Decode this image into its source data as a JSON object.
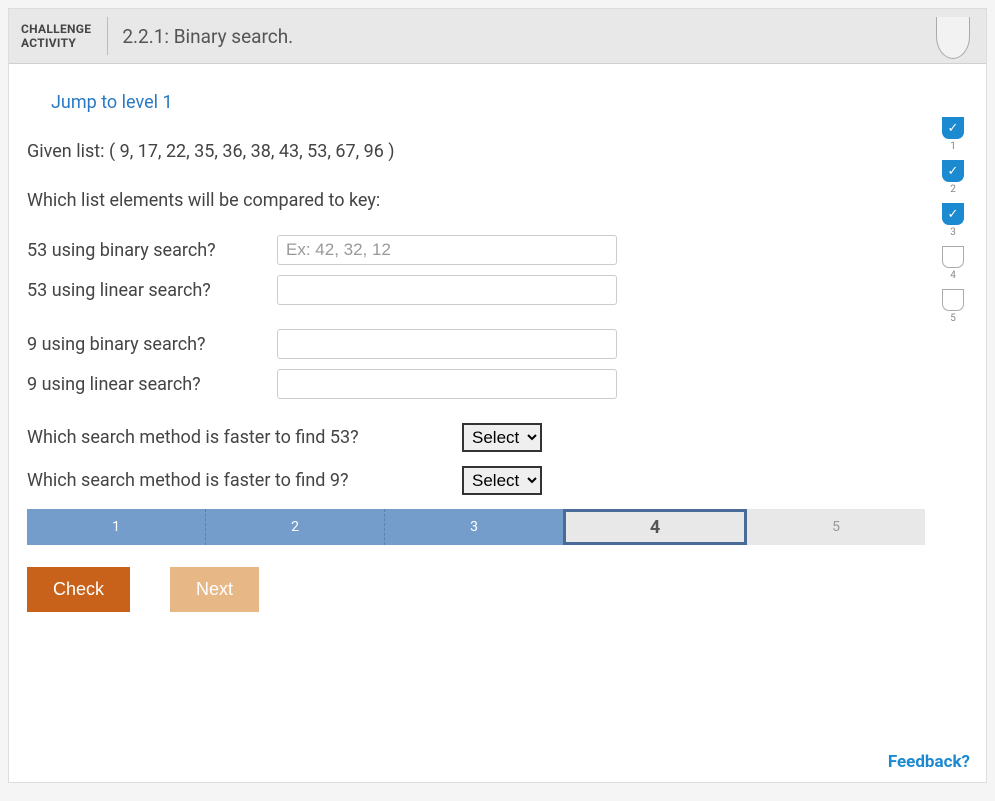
{
  "header": {
    "challenge_label_line1": "CHALLENGE",
    "challenge_label_line2": "ACTIVITY",
    "title": "2.2.1: Binary search."
  },
  "jump_link": "Jump to level 1",
  "given_list": "Given list: ( 9, 17, 22, 35, 36, 38, 43, 53, 67, 96 )",
  "prompt": "Which list elements will be compared to key:",
  "questions": {
    "q1": {
      "label": "53 using binary search?",
      "placeholder": "Ex: 42, 32, 12"
    },
    "q2": {
      "label": "53 using linear search?",
      "placeholder": ""
    },
    "q3": {
      "label": "9 using binary search?",
      "placeholder": ""
    },
    "q4": {
      "label": "9 using linear search?",
      "placeholder": ""
    },
    "q5": {
      "label": "Which search method is faster to find 53?",
      "select": "Select"
    },
    "q6": {
      "label": "Which search method is faster to find 9?",
      "select": "Select"
    }
  },
  "progress": {
    "segments": [
      "1",
      "2",
      "3",
      "4",
      "5"
    ],
    "completed_count": 3,
    "current": 4,
    "colors": {
      "completed_bg": "#759dcc",
      "current_bg": "#e8e8e8",
      "current_border": "#4a6a9a",
      "pending_bg": "#e8e8e8"
    }
  },
  "buttons": {
    "check": "Check",
    "next": "Next",
    "check_color": "#c8621a",
    "next_color": "#e8b786"
  },
  "feedback": "Feedback?",
  "levels": [
    {
      "num": "1",
      "done": true
    },
    {
      "num": "2",
      "done": true
    },
    {
      "num": "3",
      "done": true
    },
    {
      "num": "4",
      "done": false
    },
    {
      "num": "5",
      "done": false
    }
  ],
  "colors": {
    "link": "#2a78c2",
    "feedback": "#1b8ad0",
    "done_box": "#1b8ad0"
  }
}
